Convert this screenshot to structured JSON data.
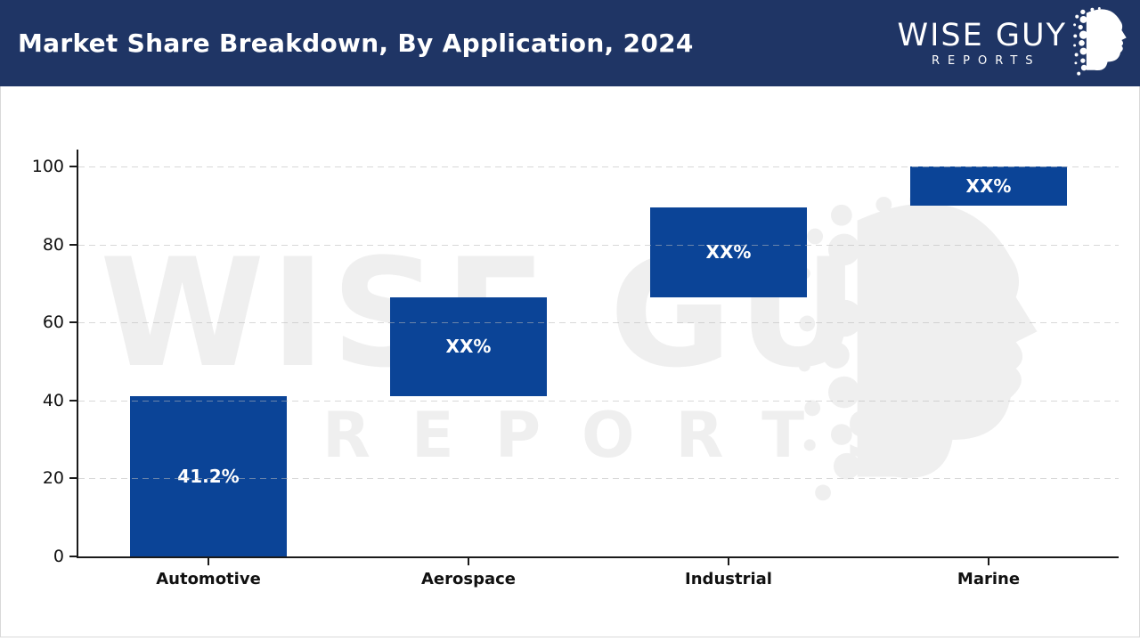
{
  "header": {
    "title": "Market Share Breakdown, By Application, 2024",
    "logo": {
      "line1": "WISE GUY",
      "line2": "REPORTS"
    }
  },
  "watermark": {
    "line1": "WISE GUY",
    "line2": "REPORTS"
  },
  "chart_data": {
    "type": "bar",
    "subtype": "floating-waterfall",
    "title": "Market Share Breakdown, By Application, 2024",
    "categories": [
      "Automotive",
      "Aerospace",
      "Industrial",
      "Marine"
    ],
    "segments": [
      {
        "category": "Automotive",
        "start": 0,
        "end": 41.2,
        "label": "41.2%"
      },
      {
        "category": "Aerospace",
        "start": 41.2,
        "end": 66.5,
        "label": "XX%"
      },
      {
        "category": "Industrial",
        "start": 66.5,
        "end": 89.5,
        "label": "XX%"
      },
      {
        "category": "Marine",
        "start": 90,
        "end": 100,
        "label": "XX%"
      }
    ],
    "xlabel": "",
    "ylabel": "",
    "ylim": [
      0,
      100
    ],
    "yticks": [
      0,
      20,
      40,
      60,
      80,
      100
    ],
    "grid": "horizontal-dashed",
    "legend": "none",
    "bar_color": "#0b4497",
    "bar_label_color": "#ffffff",
    "axis_color": "#1a1a1a"
  },
  "colors": {
    "header_bg": "#1f3565",
    "header_text": "#ffffff",
    "watermark": "#efefef",
    "grid": "#bbbbbb"
  }
}
